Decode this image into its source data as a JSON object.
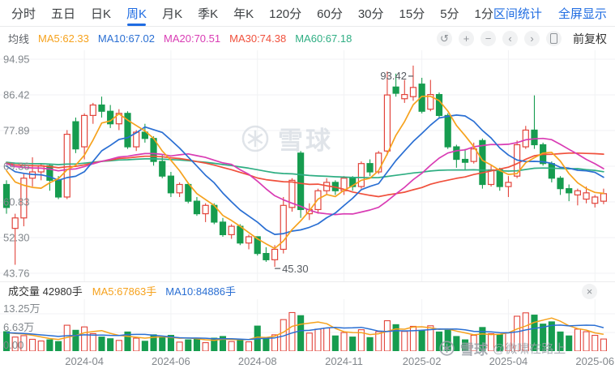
{
  "toolbar": {
    "tabs": [
      {
        "name": "minute",
        "label": "分时",
        "active": false
      },
      {
        "name": "five-day",
        "label": "五日",
        "active": false
      },
      {
        "name": "daily-k",
        "label": "日K",
        "active": false
      },
      {
        "name": "weekly-k",
        "label": "周K",
        "active": true
      },
      {
        "name": "monthly-k",
        "label": "月K",
        "active": false
      },
      {
        "name": "quarterly-k",
        "label": "季K",
        "active": false
      },
      {
        "name": "yearly-k",
        "label": "年K",
        "active": false
      },
      {
        "name": "120min",
        "label": "120分",
        "active": false
      },
      {
        "name": "60min",
        "label": "60分",
        "active": false
      },
      {
        "name": "30min",
        "label": "30分",
        "active": false
      },
      {
        "name": "15min",
        "label": "15分",
        "active": false
      },
      {
        "name": "5min",
        "label": "5分",
        "active": false
      },
      {
        "name": "1min",
        "label": "1分",
        "active": false
      }
    ],
    "range_stats": "区间统计",
    "fullscreen": "全屏显示"
  },
  "legend": {
    "title": "均线",
    "items": [
      {
        "label": "MA5:62.33",
        "color_key": "ma5"
      },
      {
        "label": "MA10:67.02",
        "color_key": "ma10"
      },
      {
        "label": "MA20:70.51",
        "color_key": "ma20"
      },
      {
        "label": "MA30:74.38",
        "color_key": "ma30"
      },
      {
        "label": "MA60:67.18",
        "color_key": "ma60"
      }
    ],
    "buttons": [
      {
        "name": "undo",
        "glyph": "↺"
      },
      {
        "name": "zoom-in",
        "glyph": "+"
      },
      {
        "name": "zoom-out",
        "glyph": "−"
      },
      {
        "name": "pan-left",
        "glyph": "‹"
      },
      {
        "name": "pan-right",
        "glyph": "›"
      },
      {
        "name": "mobile",
        "glyph": ""
      }
    ],
    "adjust": "前复权"
  },
  "volume_panel": {
    "title": "成交量",
    "current": "42980手",
    "items": [
      {
        "label": "MA5:67863手",
        "color_key": "ma5"
      },
      {
        "label": "MA10:84886手",
        "color_key": "ma10"
      }
    ],
    "close_glyph": "×"
  },
  "watermark": {
    "brand": "雪球",
    "corner_user": "@微啸在路上"
  },
  "colors": {
    "up": "#e2443b",
    "down": "#169c4f",
    "ma5": "#f6a21d",
    "ma10": "#2a6fd3",
    "ma20": "#d93cb4",
    "ma30": "#f0503c",
    "ma60": "#2fae83",
    "accent_blue": "#1f6ce2",
    "axis_text": "#82878c",
    "grid": "#f1f2f4"
  },
  "chart_data": {
    "type": "candlestick",
    "period": "周K",
    "title": "",
    "high_label": "93.42",
    "low_label": "45.30",
    "y_gridlines": [
      "94.95",
      "86.42",
      "77.89",
      "69.36",
      "60.83",
      "52.30",
      "43.76"
    ],
    "x_axis": [
      {
        "label": "2024-04",
        "week": 9
      },
      {
        "label": "2024-06",
        "week": 19
      },
      {
        "label": "2024-08",
        "week": 29
      },
      {
        "label": "2024-11",
        "week": 39
      },
      {
        "label": "2025-02",
        "week": 48
      },
      {
        "label": "2025-04",
        "week": 58
      },
      {
        "label": "2025-06",
        "week": 68
      }
    ],
    "volume_axis_labels": [
      "13.25万",
      "6.63万",
      "0.00"
    ],
    "volume_axis_values": [
      13.25,
      6.63,
      0
    ],
    "price_ma_periods": [
      60,
      30,
      20,
      10,
      5
    ],
    "volume_ma_periods": [
      5,
      10
    ],
    "ma_seed_price": 70.5,
    "ma_seed_volume": 6.5,
    "candles_format": [
      "open",
      "high",
      "low",
      "close",
      "volume_wan"
    ],
    "candles": [
      [
        65,
        66,
        58,
        59.5,
        6.9
      ],
      [
        54.5,
        58,
        45.8,
        57,
        5.0
      ],
      [
        57,
        67.5,
        55,
        66.5,
        5.5
      ],
      [
        66.5,
        71.5,
        64.5,
        68,
        4.2
      ],
      [
        68,
        70,
        66,
        69.5,
        3.6
      ],
      [
        69.5,
        70,
        63.5,
        66,
        4.0
      ],
      [
        66,
        67,
        61.5,
        62,
        3.4
      ],
      [
        62,
        78,
        61.5,
        77,
        9.2
      ],
      [
        80,
        81,
        72.5,
        73.5,
        7.4
      ],
      [
        74,
        82,
        71,
        81.5,
        8.6
      ],
      [
        81.5,
        84.5,
        79.5,
        84,
        6.2
      ],
      [
        84,
        86,
        81,
        82.5,
        5.0
      ],
      [
        82.5,
        84,
        78.5,
        79.5,
        4.4
      ],
      [
        79.5,
        83,
        78,
        82,
        3.8
      ],
      [
        82,
        82.5,
        73.5,
        74,
        6.8
      ],
      [
        74,
        78,
        73,
        77.5,
        4.6
      ],
      [
        77.5,
        79.5,
        75,
        76,
        3.5
      ],
      [
        76,
        76.5,
        69.5,
        70.5,
        5.8
      ],
      [
        70.5,
        72,
        66.5,
        67,
        4.8
      ],
      [
        67,
        68,
        62,
        63,
        5.6
      ],
      [
        63,
        65.5,
        62,
        65,
        3.2
      ],
      [
        65,
        65.5,
        60.5,
        61,
        4.0
      ],
      [
        61,
        62,
        57.5,
        58,
        4.4
      ],
      [
        58,
        60.5,
        56,
        60,
        3.0
      ],
      [
        60,
        60.5,
        55.5,
        56,
        4.6
      ],
      [
        56,
        57,
        52.5,
        53,
        5.2
      ],
      [
        53,
        55.5,
        52,
        55,
        3.4
      ],
      [
        55,
        55.5,
        50.5,
        51,
        4.1
      ],
      [
        51,
        53,
        49.5,
        52.5,
        3.3
      ],
      [
        52.5,
        52.5,
        48,
        48.5,
        8.9
      ],
      [
        48.5,
        50,
        46.5,
        47,
        4.4
      ],
      [
        47,
        50.5,
        45.3,
        49.5,
        5.8
      ],
      [
        49.5,
        62,
        48.5,
        60,
        11.2
      ],
      [
        59.5,
        66.5,
        58.5,
        66,
        13.7
      ],
      [
        72.5,
        73,
        57,
        59,
        12.6
      ],
      [
        58,
        60.5,
        56.5,
        59,
        6.4
      ],
      [
        59,
        64,
        58,
        63.5,
        7.8
      ],
      [
        63.5,
        66.5,
        62.5,
        65.5,
        8.2
      ],
      [
        65.5,
        66,
        62.5,
        63.5,
        5.4
      ],
      [
        63.5,
        67,
        62.5,
        66.5,
        6.6
      ],
      [
        66.5,
        67,
        63.5,
        64.5,
        5.0
      ],
      [
        64.5,
        70.5,
        64,
        70,
        7.6
      ],
      [
        70,
        71,
        67,
        68,
        4.8
      ],
      [
        68,
        73,
        67.5,
        72.5,
        6.9
      ],
      [
        73,
        92,
        72,
        86.4,
        10.8
      ],
      [
        88.3,
        91.5,
        86,
        86.8,
        9.4
      ],
      [
        85.5,
        90,
        84.5,
        86.5,
        7.0
      ],
      [
        86,
        93.42,
        85,
        88.2,
        8.8
      ],
      [
        89,
        90.5,
        82,
        82.5,
        7.2
      ],
      [
        83,
        90,
        82.5,
        86.5,
        9.0
      ],
      [
        86.5,
        87,
        81,
        81.5,
        6.8
      ],
      [
        81.5,
        82,
        73.5,
        74,
        7.4
      ],
      [
        74,
        74.5,
        69,
        71,
        5.2
      ],
      [
        71,
        73.5,
        68.5,
        70.3,
        4.0
      ],
      [
        70.5,
        75,
        70,
        73.5,
        5.6
      ],
      [
        75.5,
        76,
        64,
        65,
        8.4
      ],
      [
        65,
        69.5,
        64.5,
        68.5,
        6.2
      ],
      [
        68.5,
        69,
        63.5,
        64.5,
        5.8
      ],
      [
        64.5,
        67,
        62,
        65.5,
        6.6
      ],
      [
        67,
        75.5,
        66.5,
        74.5,
        12.4
      ],
      [
        74,
        79,
        73.5,
        78,
        13.6
      ],
      [
        78,
        86.3,
        73.5,
        74.5,
        12.8
      ],
      [
        74.5,
        75,
        69.5,
        70,
        9.6
      ],
      [
        70,
        70.5,
        65.5,
        66.5,
        10.4
      ],
      [
        66.5,
        67,
        62.5,
        64,
        6.8
      ],
      [
        64,
        65,
        61,
        63,
        5.4
      ],
      [
        62.5,
        64,
        60,
        63.5,
        7.8
      ],
      [
        61.5,
        64.5,
        60.5,
        63,
        6.9
      ],
      [
        60.5,
        62.5,
        59.5,
        62,
        5.6
      ],
      [
        61,
        64,
        60.3,
        62.8,
        4.298
      ]
    ]
  }
}
